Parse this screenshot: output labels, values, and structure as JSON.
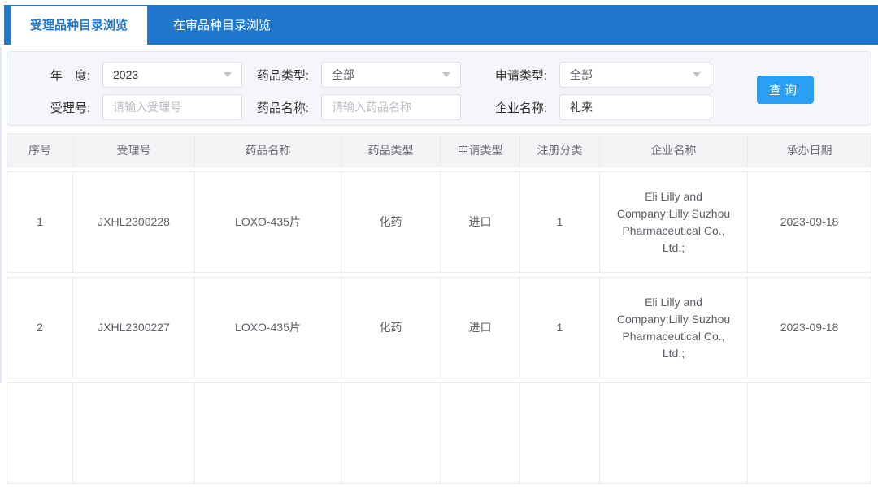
{
  "colors": {
    "primary": "#2177cb",
    "search_button": "#2b9ef5",
    "panel_bg": "#f4f6f9",
    "header_bg": "#f4f4f6"
  },
  "tabs": [
    {
      "label": "受理品种目录浏览",
      "active": true
    },
    {
      "label": "在审品种目录浏览",
      "active": false
    }
  ],
  "filters": {
    "year": {
      "label": "年　度:",
      "value": "2023"
    },
    "drug_type": {
      "label": "药品类型:",
      "value": "全部"
    },
    "apply_type": {
      "label": "申请类型:",
      "value": "全部"
    },
    "acceptance_no": {
      "label": "受理号:",
      "placeholder": "请输入受理号"
    },
    "drug_name": {
      "label": "药品名称:",
      "placeholder": "请输入药品名称"
    },
    "company": {
      "label": "企业名称:",
      "value": "礼来"
    },
    "search_label": "查询"
  },
  "table": {
    "headers": [
      "序号",
      "受理号",
      "药品名称",
      "药品类型",
      "申请类型",
      "注册分类",
      "企业名称",
      "承办日期"
    ],
    "rows": [
      [
        "1",
        "JXHL2300228",
        "LOXO-435片",
        "化药",
        "进口",
        "1",
        "Eli Lilly and Company;Lilly Suzhou Pharmaceutical Co., Ltd.;",
        "2023-09-18"
      ],
      [
        "2",
        "JXHL2300227",
        "LOXO-435片",
        "化药",
        "进口",
        "1",
        "Eli Lilly and Company;Lilly Suzhou Pharmaceutical Co., Ltd.;",
        "2023-09-18"
      ]
    ]
  }
}
